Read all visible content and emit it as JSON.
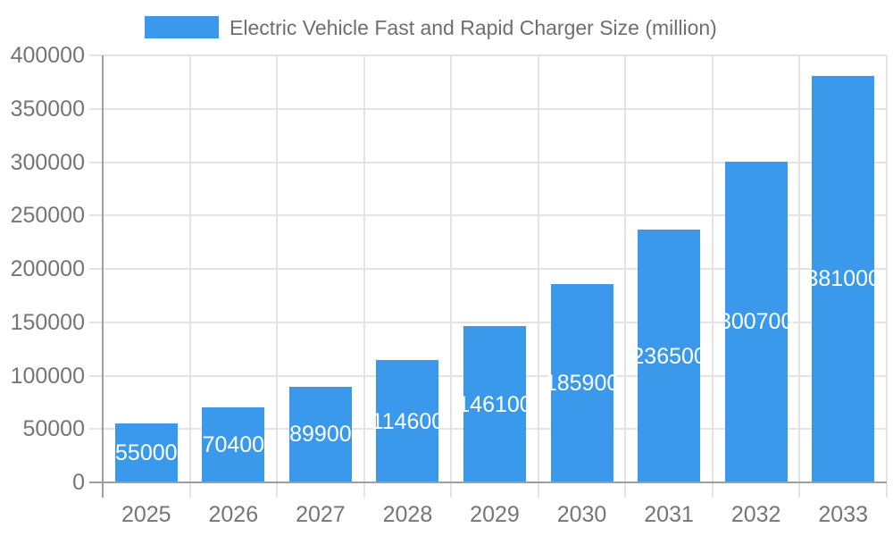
{
  "chart_data": {
    "type": "bar",
    "title": "Electric Vehicle Fast and Rapid Charger Size (million)",
    "legend_position": "top",
    "categories": [
      "2025",
      "2026",
      "2027",
      "2028",
      "2029",
      "2030",
      "2031",
      "2032",
      "2033"
    ],
    "series": [
      {
        "name": "Electric Vehicle Fast and Rapid Charger Size (million)",
        "values": [
          55000,
          70400,
          89900,
          114600,
          146100,
          185900,
          236500,
          300700,
          381000
        ]
      }
    ],
    "bar_labels": [
      "55000",
      "70400",
      "89900",
      "114600",
      "146100",
      "185900",
      "236500",
      "300700",
      "381000"
    ],
    "xlabel": "",
    "ylabel": "",
    "ylim": [
      0,
      400000
    ],
    "ytick_step": 50000,
    "ytick_labels": [
      "0",
      "50000",
      "100000",
      "150000",
      "200000",
      "250000",
      "300000",
      "350000",
      "400000"
    ],
    "grid": true,
    "colors": {
      "bar": "#3B99EC",
      "bar_label": "#FFFFFF",
      "grid_line": "#E3E3E3",
      "axis_line": "#9E9E9E",
      "tick_label": "#757575",
      "title": "#6E6E6E",
      "background": "#FFFFFF"
    }
  }
}
